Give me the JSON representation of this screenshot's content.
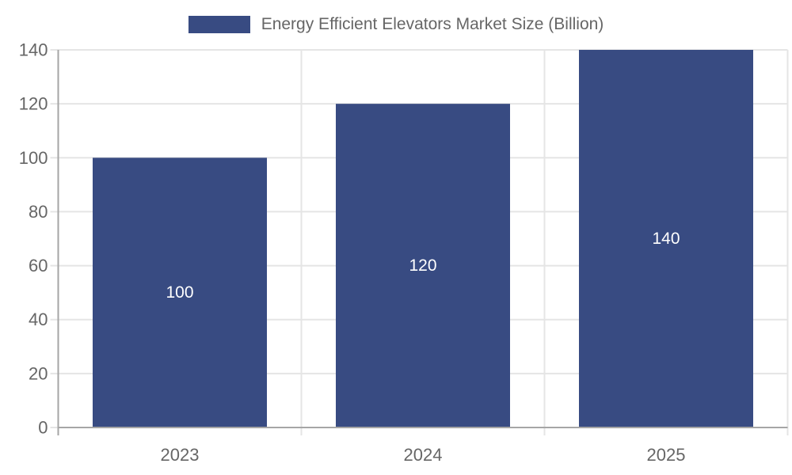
{
  "chart_data": {
    "type": "bar",
    "title": "Energy Efficient Elevators Market Size (Billion)",
    "legend": {
      "position": "top",
      "label": "Energy Efficient Elevators Market Size (Billion)"
    },
    "categories": [
      "2023",
      "2024",
      "2025"
    ],
    "values": [
      100,
      120,
      140
    ],
    "value_labels": [
      "100",
      "120",
      "140"
    ],
    "xlabel": "",
    "ylabel": "",
    "ylim": [
      0,
      140
    ],
    "yticks": [
      0,
      20,
      40,
      60,
      80,
      100,
      120,
      140
    ],
    "grid": true,
    "colors": {
      "bar": "#384b82",
      "grid": "#e5e5e5",
      "axis": "#a6a6a6",
      "tick_label": "#666666",
      "value_label": "#ffffff",
      "legend_text": "#666666"
    }
  }
}
